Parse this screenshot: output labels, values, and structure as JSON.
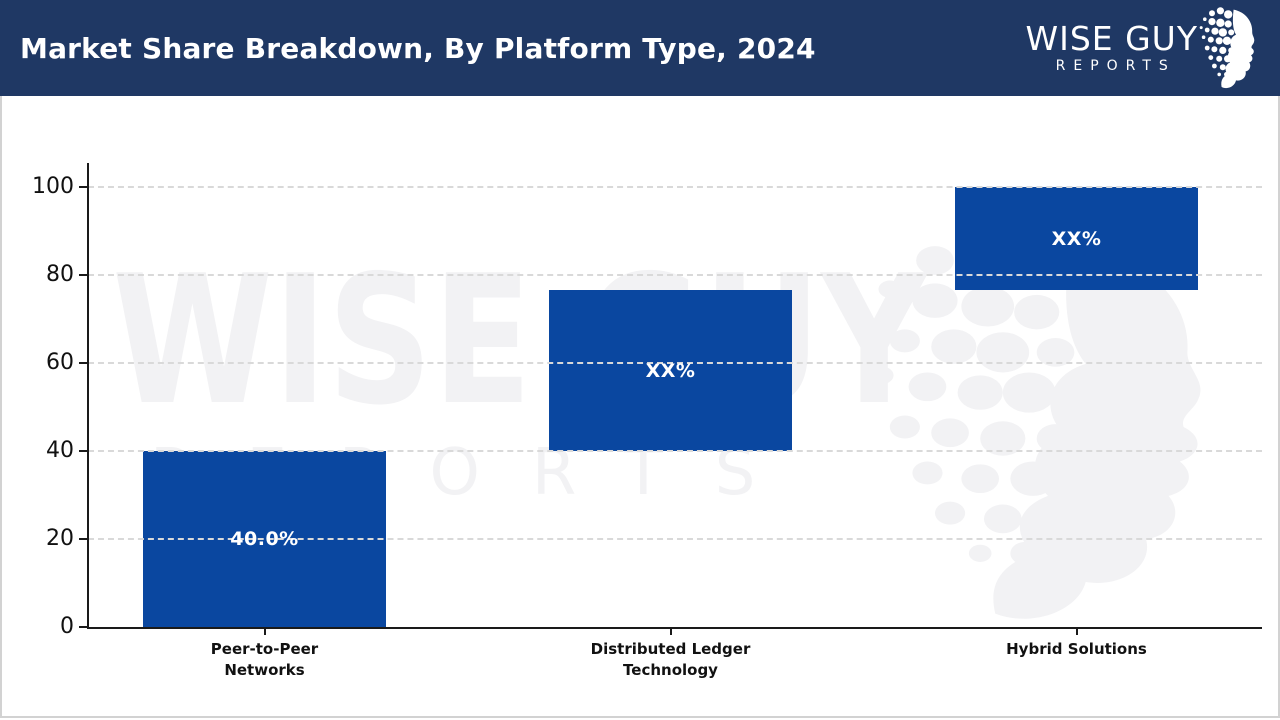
{
  "header": {
    "title": "Market Share Breakdown, By Platform Type, 2024",
    "logo": {
      "name": "Wise Guy Reports",
      "line1": "WISE GUY",
      "line2": "REPORTS"
    }
  },
  "watermark": {
    "line1": "WISE GUY",
    "line2": "REPORTS"
  },
  "chart_data": {
    "type": "bar",
    "subtype": "stacked-waterfall-segments",
    "title": "Market Share Breakdown, By Platform Type, 2024",
    "categories": [
      [
        "Peer-to-Peer",
        "Networks"
      ],
      [
        "Distributed Ledger",
        "Technology"
      ],
      [
        "Hybrid Solutions"
      ]
    ],
    "segments": [
      {
        "category": "Peer-to-Peer Networks",
        "start": 0,
        "end": 40,
        "label": "40.0%"
      },
      {
        "category": "Distributed Ledger Technology",
        "start": 40,
        "end": 76.5,
        "label": "XX%"
      },
      {
        "category": "Hybrid Solutions",
        "start": 76.5,
        "end": 100,
        "label": "XX%"
      }
    ],
    "xlabel": "",
    "ylabel": "",
    "ylim": [
      0,
      100
    ],
    "yticks": [
      0,
      20,
      40,
      60,
      80,
      100
    ],
    "grid": "horizontal-dashed",
    "legend": "none",
    "colors": {
      "bar": "#0a47a0",
      "grid": "#d9d9d9",
      "axis": "#1a1a1a",
      "bar_label": "#ffffff"
    }
  },
  "colors": {
    "header_bg": "#1f3864",
    "watermark": "#f2f2f4",
    "frame": "#d2d2d2"
  }
}
